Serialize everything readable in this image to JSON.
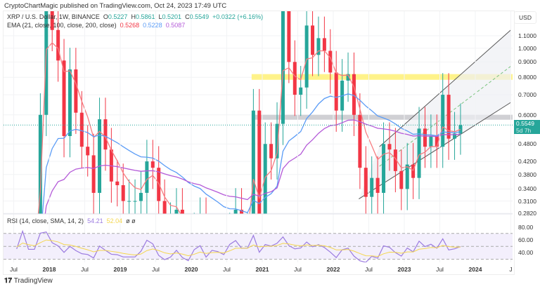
{
  "publisher_line": "CryptoChartMagic published on TradingView.com, Oct 24, 2023 17:49 UTC",
  "symbol": {
    "name": "XRP / U.S. Dollar, 1W, BINANCE",
    "o_label": "O",
    "o": "0.5227",
    "h_label": "H",
    "h": "0.5861",
    "l_label": "L",
    "l": "0.5201",
    "c_label": "C",
    "c": "0.5549",
    "change": "+0.0322 (+6.16%)"
  },
  "ema": {
    "label": "EMA (21, close, 100, close, 200, close)",
    "v1": "0.5268",
    "v2": "0.5228",
    "v3": "0.5087"
  },
  "rsi": {
    "label": "RSI (14, close, SMA, 14, 2)",
    "v1": "54.21",
    "v2": "52.04",
    "extra": "ø ø"
  },
  "currency": "USD",
  "current_price": {
    "value": "0.5549",
    "countdown": "5d 7h"
  },
  "brand": "TradingView",
  "colors": {
    "up": "#26a69a",
    "down": "#f23645",
    "ema21": "#f77c80",
    "ema100": "#5b9cf6",
    "ema200": "#b45ad8",
    "rsi": "#9c7ce0",
    "rsi_ma": "#f4d64e",
    "yellow_zone": "#fff176",
    "gray_zone": "#c8c8cc",
    "current": "#26a69a"
  },
  "chart_data": {
    "type": "candlestick",
    "yscale": "log",
    "ylim": [
      0.282,
      1.1
    ],
    "y_ticks": [
      "1.1000",
      "1.0000",
      "0.9000",
      "0.8000",
      "0.7000",
      "0.6000",
      "0.4800",
      "0.4200",
      "0.3800",
      "0.3400",
      "0.3100",
      "0.2820"
    ],
    "x_ticks": [
      {
        "label": "Jul",
        "t": 2017.5,
        "bold": false
      },
      {
        "label": "2018",
        "t": 2018,
        "bold": true
      },
      {
        "label": "Jul",
        "t": 2018.5,
        "bold": false
      },
      {
        "label": "2019",
        "t": 2019,
        "bold": true
      },
      {
        "label": "Jul",
        "t": 2019.5,
        "bold": false
      },
      {
        "label": "2020",
        "t": 2020,
        "bold": true
      },
      {
        "label": "Jul",
        "t": 2020.5,
        "bold": false
      },
      {
        "label": "2021",
        "t": 2021,
        "bold": true
      },
      {
        "label": "Jul",
        "t": 2021.5,
        "bold": false
      },
      {
        "label": "2022",
        "t": 2022,
        "bold": true
      },
      {
        "label": "Jul",
        "t": 2022.5,
        "bold": false
      },
      {
        "label": "2023",
        "t": 2023,
        "bold": true
      },
      {
        "label": "Jul",
        "t": 2023.5,
        "bold": false
      },
      {
        "label": "2024",
        "t": 2024,
        "bold": true
      },
      {
        "label": "J",
        "t": 2024.5,
        "bold": false
      }
    ],
    "start": "2017-07",
    "monthly_close": [
      0.19,
      0.23,
      0.2,
      0.2,
      0.6,
      2.3,
      1.15,
      0.91,
      0.51,
      0.85,
      0.61,
      0.47,
      0.44,
      0.33,
      0.58,
      0.46,
      0.36,
      0.35,
      0.31,
      0.31,
      0.31,
      0.33,
      0.42,
      0.4,
      0.31,
      0.25,
      0.26,
      0.29,
      0.23,
      0.19,
      0.24,
      0.27,
      0.17,
      0.21,
      0.2,
      0.18,
      0.24,
      0.29,
      0.24,
      0.24,
      0.62,
      0.22,
      0.48,
      0.43,
      0.56,
      1.63,
      0.9,
      0.7,
      0.74,
      1.19,
      0.95,
      1.08,
      0.98,
      0.83,
      0.62,
      0.78,
      0.82,
      0.6,
      0.4,
      0.32,
      0.37,
      0.33,
      0.48,
      0.46,
      0.39,
      0.34,
      0.41,
      0.37,
      0.54,
      0.47,
      0.51,
      0.47,
      0.7,
      0.5,
      0.52,
      0.5549
    ],
    "zones": [
      {
        "low": 0.785,
        "high": 0.82,
        "from": 2020.85,
        "color": "yellow"
      },
      {
        "low": 0.578,
        "high": 0.6,
        "from": 2020.85,
        "color": "gray"
      }
    ],
    "channel": {
      "lower": [
        [
          2022.36,
          0.315
        ],
        [
          2024.5,
          0.66
        ]
      ],
      "upper": [
        [
          2022.65,
          0.47
        ],
        [
          2024.5,
          1.15
        ]
      ]
    },
    "rsi_levels": [
      70,
      50,
      30
    ],
    "rsi_ticks": [
      "80.00",
      "60.00",
      "40.00"
    ]
  }
}
